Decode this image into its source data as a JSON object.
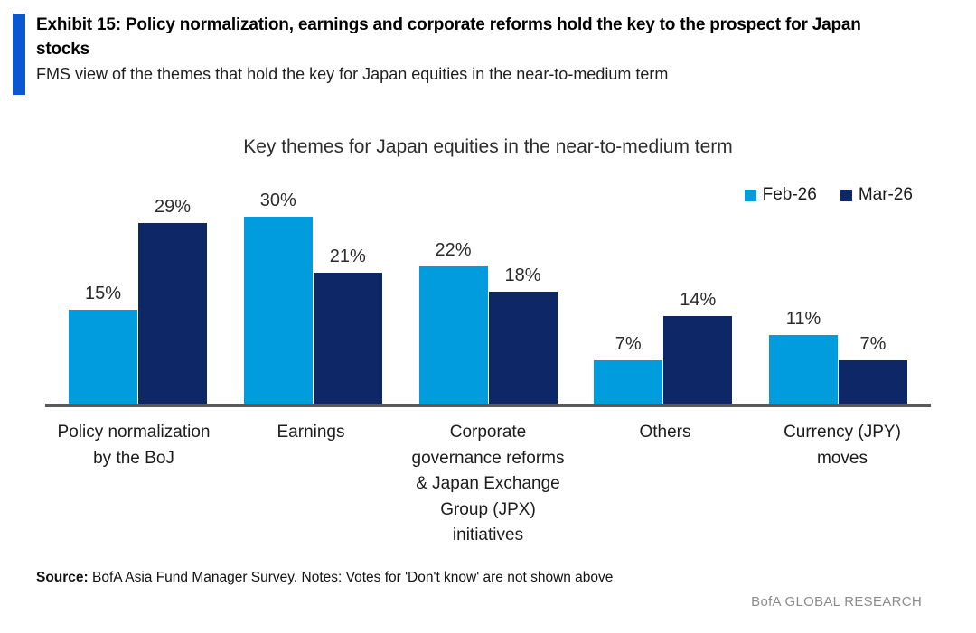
{
  "header": {
    "exhibit_title": "Exhibit 15: Policy normalization, earnings and corporate reforms hold the key to the prospect for Japan stocks",
    "subtitle": "FMS view of the themes that hold the key for Japan equities in the near-to-medium term"
  },
  "chart_data": {
    "type": "bar",
    "title": "Key themes for Japan equities in the near-to-medium term",
    "categories": [
      "Policy normalization by the BoJ",
      "Earnings",
      "Corporate governance reforms & Japan Exchange Group (JPX) initiatives",
      "Others",
      "Currency (JPY) moves"
    ],
    "series": [
      {
        "name": "Feb-26",
        "color": "#009CDE",
        "values": [
          15,
          30,
          22,
          7,
          11
        ]
      },
      {
        "name": "Mar-26",
        "color": "#0E2766",
        "values": [
          29,
          21,
          18,
          14,
          7
        ]
      }
    ],
    "value_suffix": "%",
    "xlabel": "",
    "ylabel": "",
    "ylim": [
      0,
      32
    ],
    "grid": false,
    "data_labels": true,
    "legend_position": "top-right"
  },
  "footer": {
    "source_label": "Source:",
    "source_text": "BofA Asia Fund Manager Survey. Notes: Votes for 'Don't know' are not shown above",
    "branding": "BofA GLOBAL RESEARCH"
  },
  "colors": {
    "accent_bar": "#0B57D0",
    "series_feb26": "#009CDE",
    "series_mar26": "#0E2766",
    "axis_line": "#58595B",
    "branding_text": "#8C8C8C"
  }
}
